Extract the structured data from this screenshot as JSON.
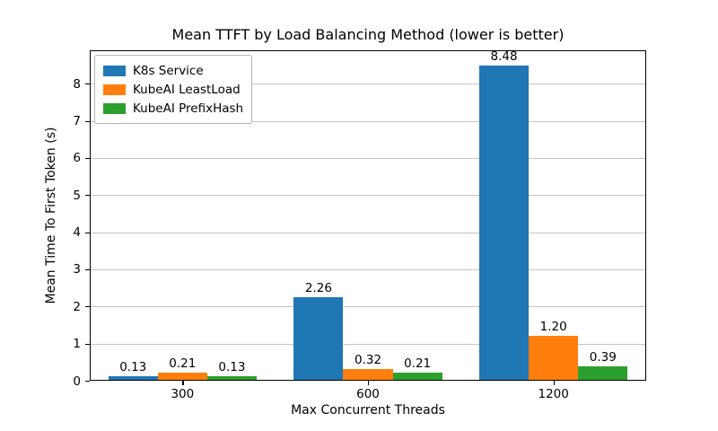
{
  "chart_data": {
    "type": "bar",
    "title": "Mean TTFT by Load Balancing Method (lower is better)",
    "xlabel": "Max Concurrent Threads",
    "ylabel": "Mean Time To First Token (s)",
    "categories": [
      "300",
      "600",
      "1200"
    ],
    "series": [
      {
        "name": "K8s Service",
        "color": "#1f77b4",
        "values": [
          0.13,
          2.26,
          8.48
        ]
      },
      {
        "name": "KubeAI LeastLoad",
        "color": "#ff7f0e",
        "values": [
          0.21,
          0.32,
          1.2
        ]
      },
      {
        "name": "KubeAI PrefixHash",
        "color": "#2ca02c",
        "values": [
          0.13,
          0.21,
          0.39
        ]
      }
    ],
    "value_label_format": "2dp",
    "ylim": [
      0,
      8.9
    ],
    "yticks": [
      0,
      1,
      2,
      3,
      4,
      5,
      6,
      7,
      8
    ],
    "grid": "y",
    "grid_color": "#c4c4c4",
    "legend_position": "upper left",
    "background_color": "#ffffff",
    "text_color": "#000000"
  }
}
